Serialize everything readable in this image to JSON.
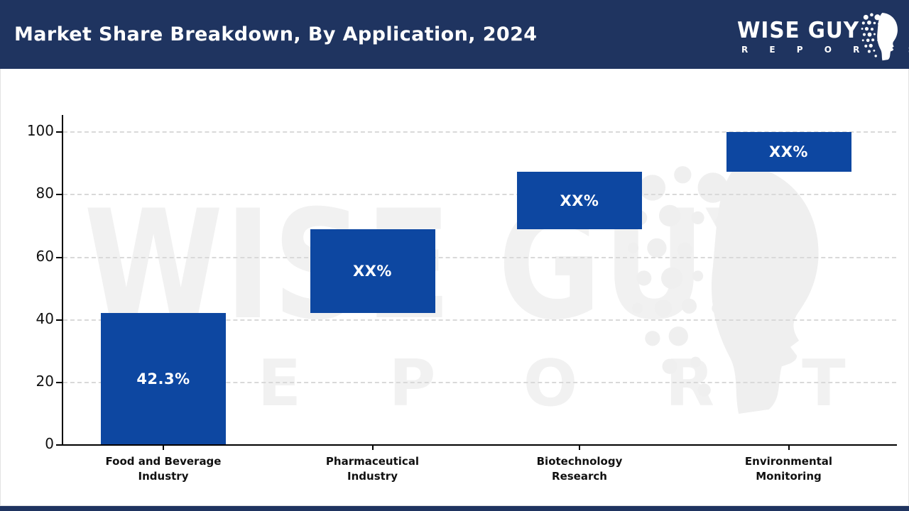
{
  "header": {
    "title": "Market Share Breakdown, By Application, 2024",
    "logo": {
      "name": "WISE GUY",
      "subname": "R E P O R T S"
    }
  },
  "watermark": {
    "name": "WISE GUY",
    "subname": "R E P O R T S"
  },
  "colors": {
    "header_bg": "#1f3460",
    "bar_blue": "#0d47a1",
    "gridline": "#d9d9d9",
    "axis": "#000000",
    "bar_label": "#ffffff",
    "watermark": "#f1f1f1"
  },
  "chart_data": {
    "type": "bar",
    "subtype": "waterfall",
    "title": "Market Share Breakdown, By Application, 2024",
    "xlabel": "",
    "ylabel": "",
    "ylim": [
      0,
      100
    ],
    "yticks": [
      0,
      20,
      40,
      60,
      80,
      100
    ],
    "grid": "horizontal-dashed",
    "legend": "none",
    "bars": [
      {
        "category": "Food and Beverage Industry",
        "category_lines": [
          "Food and Beverage",
          "Industry"
        ],
        "start": 0,
        "end": 42.3,
        "label": "42.3%"
      },
      {
        "category": "Pharmaceutical Industry",
        "category_lines": [
          "Pharmaceutical",
          "Industry"
        ],
        "start": 42.3,
        "end": 69,
        "label": "XX%"
      },
      {
        "category": "Biotechnology Research",
        "category_lines": [
          "Biotechnology",
          "Research"
        ],
        "start": 69,
        "end": 87.3,
        "label": "XX%"
      },
      {
        "category": "Environmental Monitoring",
        "category_lines": [
          "Environmental",
          "Monitoring"
        ],
        "start": 87.3,
        "end": 100,
        "label": "XX%"
      }
    ]
  }
}
